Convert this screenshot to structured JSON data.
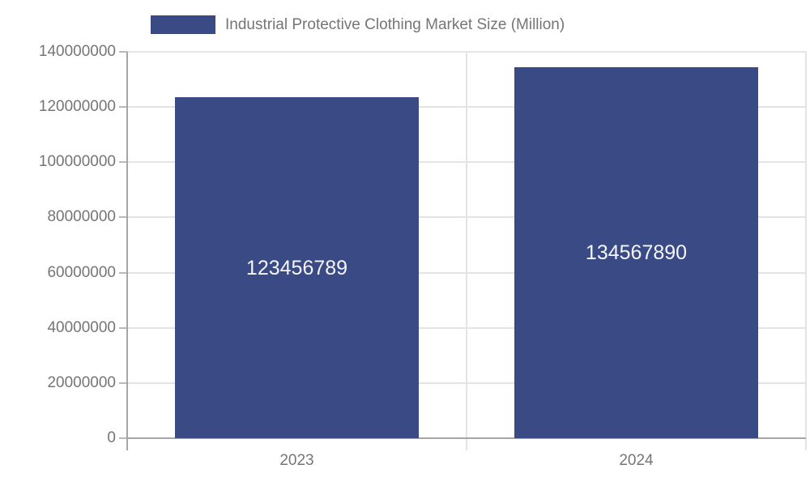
{
  "chart_data": {
    "type": "bar",
    "title": "Industrial Protective Clothing Market Size (Million)",
    "legend": {
      "label": "Industrial Protective Clothing Market Size (Million)",
      "position": "top"
    },
    "categories": [
      "2023",
      "2024"
    ],
    "series": [
      {
        "name": "Industrial Protective Clothing Market Size (Million)",
        "values": [
          123456789,
          134567890
        ]
      }
    ],
    "value_labels": [
      "123456789",
      "134567890"
    ],
    "xlabel": "",
    "ylabel": "",
    "ylim": [
      0,
      140000000
    ],
    "yticks": [
      0,
      20000000,
      40000000,
      60000000,
      80000000,
      100000000,
      120000000,
      140000000
    ],
    "ytick_labels": [
      "0",
      "20000000",
      "40000000",
      "60000000",
      "80000000",
      "100000000",
      "120000000",
      "140000000"
    ],
    "grid": true,
    "colors": {
      "bar": "#3a4a85",
      "value_label": "#f5f6fa",
      "axis_text": "#757575",
      "legend_text": "#757575",
      "axis_line": "#a6a6a6",
      "gridline": "#e4e4e4",
      "tick_mark": "#b9b9b9",
      "background": "#ffffff"
    }
  }
}
